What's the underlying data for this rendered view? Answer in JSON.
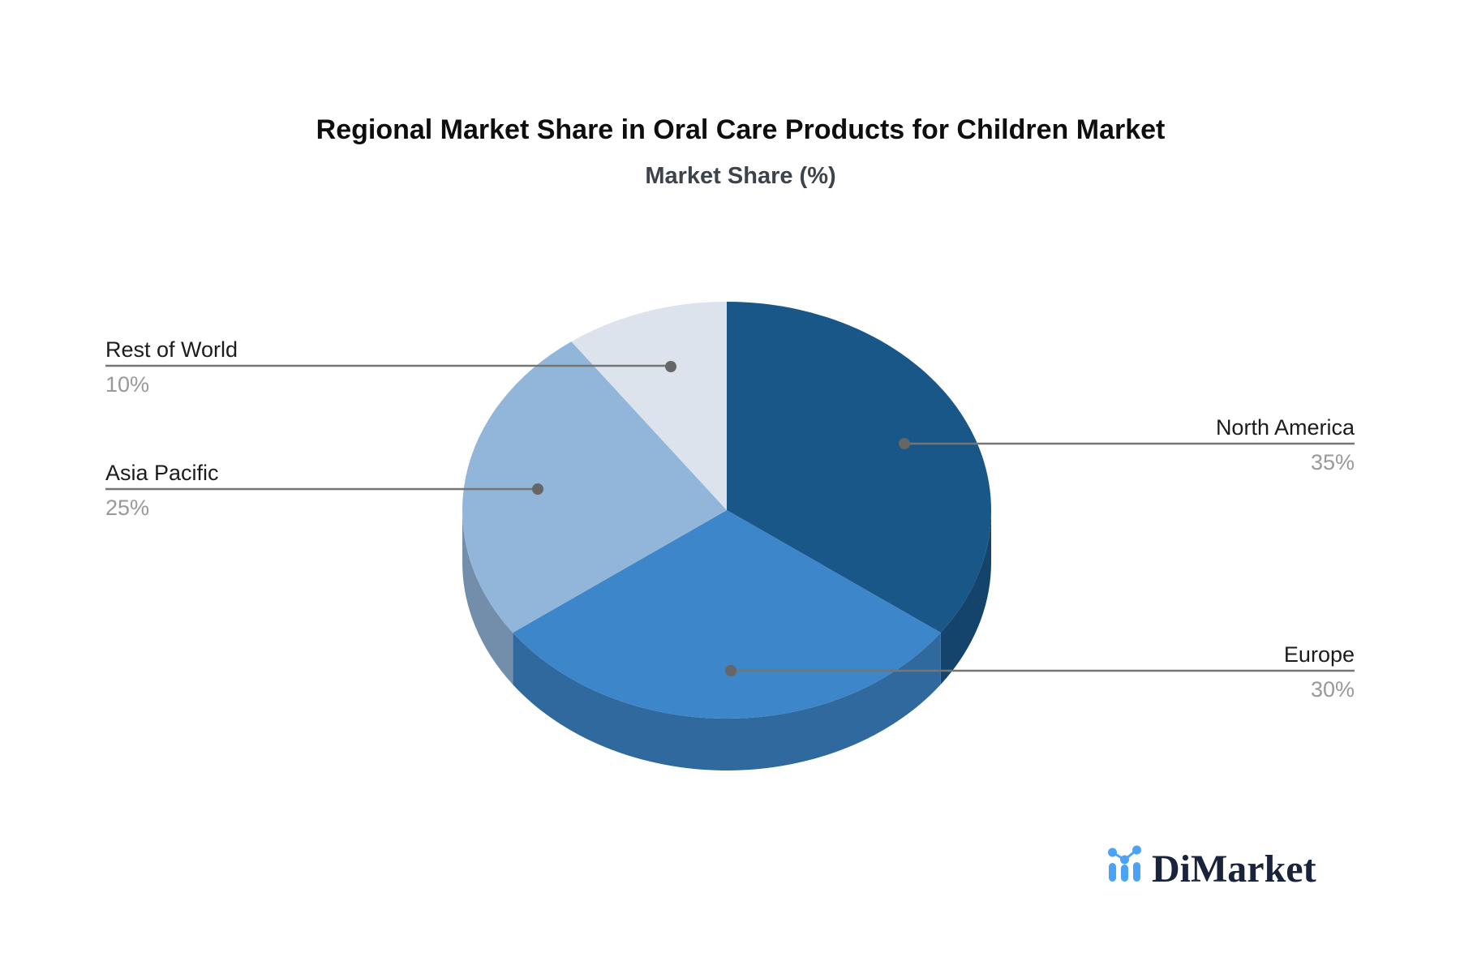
{
  "chart_data": {
    "type": "pie",
    "style": "pie-3d",
    "title": "Regional Market Share in Oral Care Products for Children Market",
    "subtitle": "Market Share (%)",
    "unit": "%",
    "categories": [
      "North America",
      "Europe",
      "Asia Pacific",
      "Rest of World"
    ],
    "values": [
      35,
      30,
      25,
      10
    ],
    "colors": [
      "#1A5789",
      "#3D86CA",
      "#92B6DA",
      "#DCE3ED"
    ],
    "legend_position": "callouts",
    "background": "#ffffff",
    "callouts": [
      {
        "label": "North America",
        "value_label": "35%",
        "side": "right"
      },
      {
        "label": "Europe",
        "value_label": "30%",
        "side": "right"
      },
      {
        "label": "Asia Pacific",
        "value_label": "25%",
        "side": "left"
      },
      {
        "label": "Rest of World",
        "value_label": "10%",
        "side": "left"
      }
    ]
  },
  "branding": {
    "logo_text": "DiMarket",
    "logo_icon": "bar-chart-sparkline-icon",
    "logo_icon_color": "#4BA3F7",
    "logo_text_color": "#19233C"
  }
}
